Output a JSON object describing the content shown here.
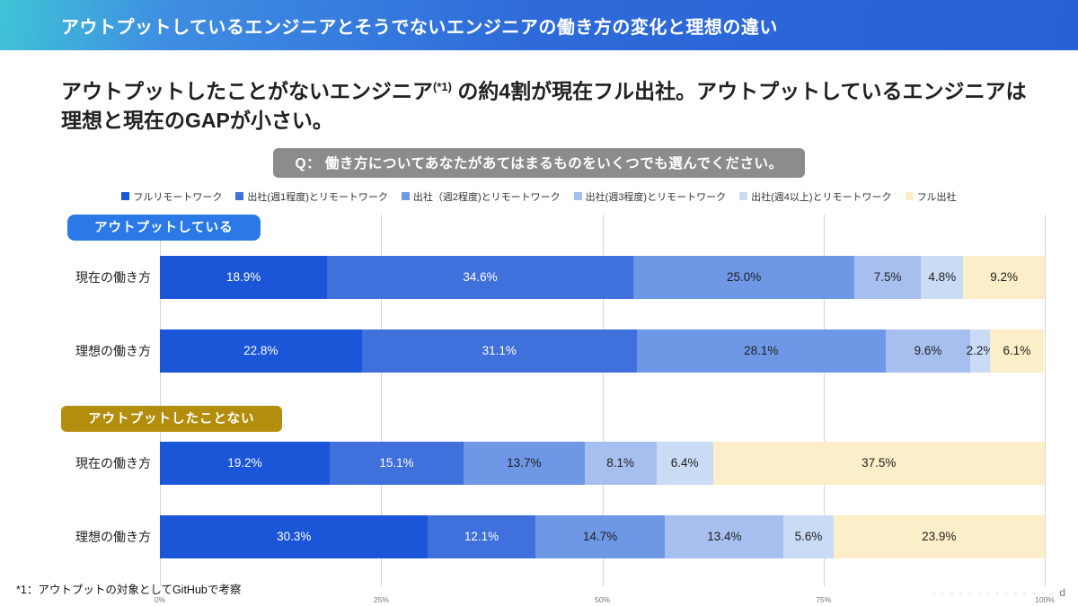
{
  "header": {
    "title": "アウトプットしているエンジニアとそうでないエンジニアの働き方の変化と理想の違い"
  },
  "headline": {
    "part1": "アウトプットしたことがないエンジニア",
    "sup": "(*1)",
    "part2": "の約4割が現在フル出社。アウトプットしているエンジニアは理想と現在のGAPが小さい。"
  },
  "question": {
    "label": "Q： 働き方についてあなたがあてはまるものをいくつでも選んでください。"
  },
  "chart_data": {
    "type": "bar",
    "stacked": true,
    "orientation": "horizontal",
    "unit": "%",
    "grid": true,
    "xlim": [
      0,
      100
    ],
    "x_ticks": [
      "0%",
      "25%",
      "50%",
      "75%",
      "100%"
    ],
    "series_labels": [
      "フルリモートワーク",
      "出社(週1程度)とリモートワーク",
      "出社（週2程度)とリモートワーク",
      "出社(週3程度)とリモートワーク",
      "出社(週4以上)とリモートワーク",
      "フル出社"
    ],
    "series_colors": [
      "#1b56d8",
      "#3f70dc",
      "#6e97e5",
      "#a6bfee",
      "#cadbf6",
      "#fbeec8"
    ],
    "value_label_colors": [
      "#ffffff",
      "#ffffff",
      "#1f1f1f",
      "#1f1f1f",
      "#1f1f1f",
      "#1f1f1f"
    ],
    "groups": [
      {
        "label": "アウトプットしている",
        "badge_color": "#2b79e6",
        "rows": [
          {
            "label": "現在の働き方",
            "values": [
              18.9,
              34.6,
              25.0,
              7.5,
              4.8,
              9.2
            ]
          },
          {
            "label": "理想の働き方",
            "values": [
              22.8,
              31.1,
              28.1,
              9.6,
              2.2,
              6.1
            ]
          }
        ]
      },
      {
        "label": "アウトプットしたことない",
        "badge_color": "#b28d0e",
        "rows": [
          {
            "label": "現在の働き方",
            "values": [
              19.2,
              15.1,
              13.7,
              8.1,
              6.4,
              37.5
            ]
          },
          {
            "label": "理想の働き方",
            "values": [
              30.3,
              12.1,
              14.7,
              13.4,
              5.6,
              23.9
            ]
          }
        ]
      }
    ]
  },
  "footer": {
    "footnote": "*1：アウトプットの対象としてGitHubで考察",
    "watermark": "d"
  }
}
